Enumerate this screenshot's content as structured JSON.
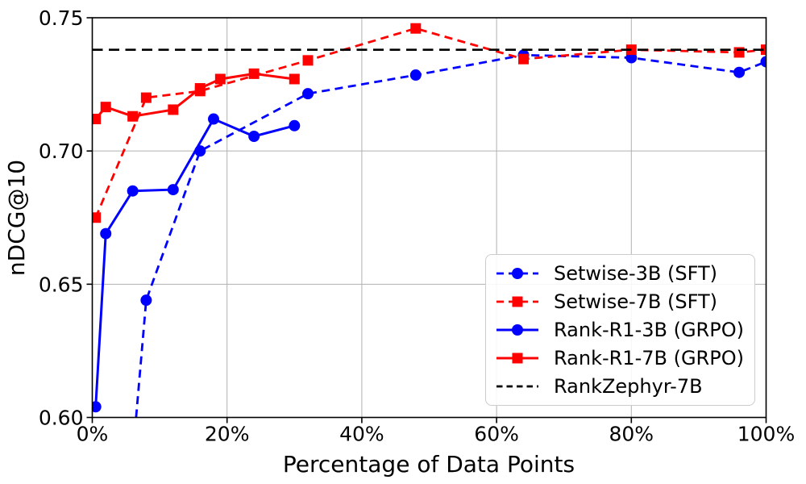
{
  "chart_data": {
    "type": "line",
    "title": "",
    "xlabel": "Percentage of Data Points",
    "ylabel": "nDCG@10",
    "xlim": [
      0,
      100
    ],
    "ylim": [
      0.6,
      0.75
    ],
    "grid": true,
    "legend_position": "lower right",
    "x_ticks": {
      "values": [
        0,
        20,
        40,
        60,
        80,
        100
      ],
      "labels": [
        "0%",
        "20%",
        "40%",
        "60%",
        "80%",
        "100%"
      ]
    },
    "y_ticks": {
      "values": [
        0.6,
        0.65,
        0.7,
        0.75
      ],
      "labels": [
        "0.60",
        "0.65",
        "0.70",
        "0.75"
      ]
    },
    "series": [
      {
        "name": "Setwise-3B (SFT)",
        "slug": "setwise-3b-sft",
        "color": "#0000ff",
        "line_style": "dashed",
        "marker": "circle",
        "x_pct": [
          8,
          16,
          32,
          48,
          64,
          80,
          96,
          100
        ],
        "y": [
          0.644,
          0.7,
          0.7215,
          0.7285,
          0.736,
          0.735,
          0.7295,
          0.7335
        ],
        "clip_entry": {
          "x_pct": 6.5,
          "y": 0.6
        }
      },
      {
        "name": "Setwise-7B (SFT)",
        "slug": "setwise-7b-sft",
        "color": "#ff0000",
        "line_style": "dashed",
        "marker": "square",
        "x_pct": [
          0.5,
          8,
          16,
          32,
          48,
          64,
          80,
          96,
          100
        ],
        "y": [
          0.675,
          0.72,
          0.7225,
          0.734,
          0.746,
          0.7345,
          0.738,
          0.737,
          0.738
        ]
      },
      {
        "name": "Rank-R1-3B (GRPO)",
        "slug": "rank-r1-3b-grpo",
        "color": "#0000ff",
        "line_style": "solid",
        "marker": "circle",
        "x_pct": [
          0.5,
          2,
          6,
          12,
          18,
          24,
          30
        ],
        "y": [
          0.604,
          0.669,
          0.685,
          0.6855,
          0.712,
          0.7055,
          0.7095
        ]
      },
      {
        "name": "Rank-R1-7B (GRPO)",
        "slug": "rank-r1-7b-grpo",
        "color": "#ff0000",
        "line_style": "solid",
        "marker": "square",
        "x_pct": [
          0.5,
          2,
          6,
          12,
          16,
          19,
          24,
          30
        ],
        "y": [
          0.712,
          0.7165,
          0.713,
          0.7155,
          0.7235,
          0.727,
          0.729,
          0.727
        ]
      },
      {
        "name": "RankZephyr-7B",
        "slug": "rankzephyr-7b",
        "color": "#000000",
        "line_style": "dashed",
        "marker": "none",
        "constant_y": 0.738
      }
    ]
  }
}
